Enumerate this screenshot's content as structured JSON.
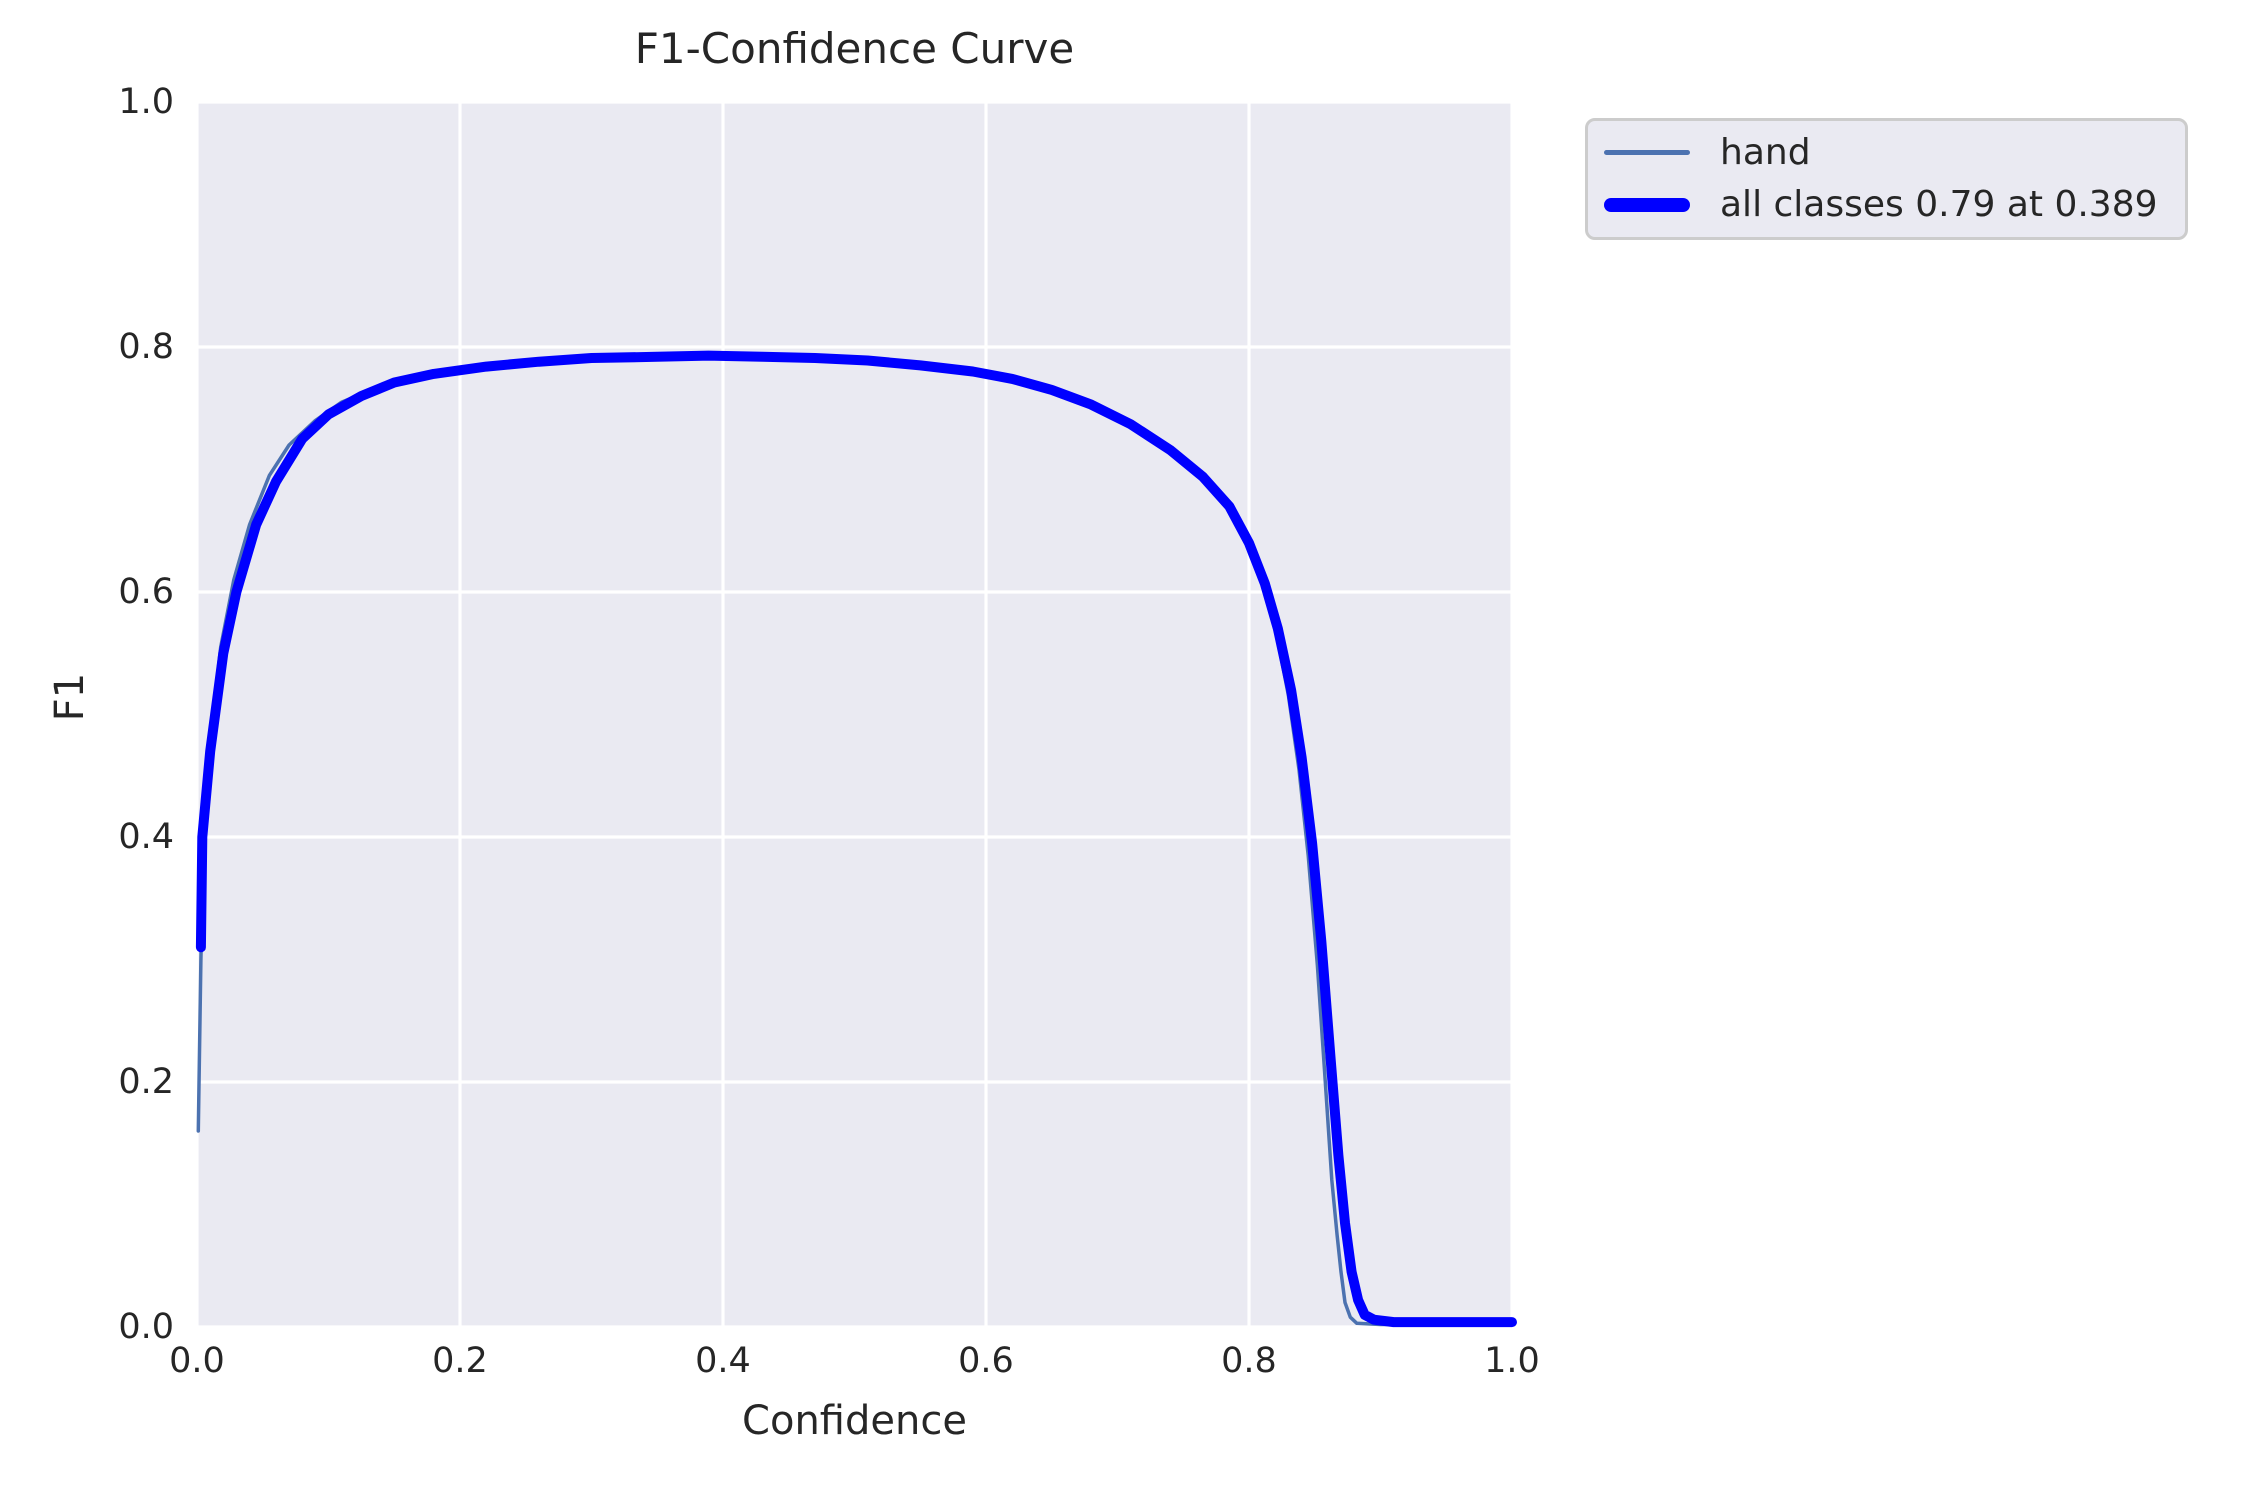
{
  "chart_data": {
    "type": "line",
    "title": "F1-Confidence Curve",
    "xlabel": "Confidence",
    "ylabel": "F1",
    "xlim": [
      0.0,
      1.0
    ],
    "ylim": [
      0.0,
      1.0
    ],
    "grid": true,
    "grid_color": "#FFFFFF",
    "axes_background": "#EAEAF2",
    "figure_background": "#FFFFFF",
    "text_color": "#262626",
    "legend_position": "outside-upper-right",
    "best": {
      "f1": 0.79,
      "confidence": 0.389
    },
    "xticks": {
      "values": [
        0.0,
        0.2,
        0.4,
        0.6,
        0.8,
        1.0
      ],
      "labels": [
        "0.0",
        "0.2",
        "0.4",
        "0.6",
        "0.8",
        "1.0"
      ]
    },
    "yticks": {
      "values": [
        0.0,
        0.2,
        0.4,
        0.6,
        0.8,
        1.0
      ],
      "labels": [
        "0.0",
        "0.2",
        "0.4",
        "0.6",
        "0.8",
        "1.0"
      ]
    },
    "series": [
      {
        "name": "hand",
        "color": "#4C72B0",
        "linewidth": 3.5,
        "points": [
          [
            0.001,
            0.16
          ],
          [
            0.003,
            0.3
          ],
          [
            0.005,
            0.4
          ],
          [
            0.01,
            0.48
          ],
          [
            0.018,
            0.555
          ],
          [
            0.028,
            0.61
          ],
          [
            0.04,
            0.655
          ],
          [
            0.055,
            0.695
          ],
          [
            0.07,
            0.72
          ],
          [
            0.09,
            0.74
          ],
          [
            0.11,
            0.755
          ],
          [
            0.135,
            0.766
          ],
          [
            0.16,
            0.775
          ],
          [
            0.19,
            0.781
          ],
          [
            0.23,
            0.786
          ],
          [
            0.27,
            0.789
          ],
          [
            0.31,
            0.791
          ],
          [
            0.35,
            0.792
          ],
          [
            0.389,
            0.793
          ],
          [
            0.43,
            0.792
          ],
          [
            0.47,
            0.791
          ],
          [
            0.51,
            0.789
          ],
          [
            0.55,
            0.785
          ],
          [
            0.59,
            0.78
          ],
          [
            0.62,
            0.774
          ],
          [
            0.65,
            0.765
          ],
          [
            0.68,
            0.753
          ],
          [
            0.71,
            0.737
          ],
          [
            0.74,
            0.716
          ],
          [
            0.765,
            0.694
          ],
          [
            0.785,
            0.67
          ],
          [
            0.8,
            0.638
          ],
          [
            0.812,
            0.602
          ],
          [
            0.822,
            0.56
          ],
          [
            0.83,
            0.515
          ],
          [
            0.838,
            0.455
          ],
          [
            0.845,
            0.385
          ],
          [
            0.852,
            0.295
          ],
          [
            0.858,
            0.2
          ],
          [
            0.863,
            0.12
          ],
          [
            0.867,
            0.075
          ],
          [
            0.87,
            0.045
          ],
          [
            0.873,
            0.02
          ],
          [
            0.877,
            0.008
          ],
          [
            0.882,
            0.003
          ],
          [
            0.9,
            0.002
          ],
          [
            0.95,
            0.002
          ],
          [
            1.0,
            0.002
          ]
        ]
      },
      {
        "name": "all classes 0.79 at 0.389",
        "color": "#0000FF",
        "linewidth": 10,
        "points": [
          [
            0.003,
            0.31
          ],
          [
            0.004,
            0.4
          ],
          [
            0.01,
            0.47
          ],
          [
            0.02,
            0.55
          ],
          [
            0.03,
            0.6
          ],
          [
            0.045,
            0.655
          ],
          [
            0.06,
            0.69
          ],
          [
            0.08,
            0.725
          ],
          [
            0.1,
            0.745
          ],
          [
            0.125,
            0.76
          ],
          [
            0.15,
            0.771
          ],
          [
            0.18,
            0.778
          ],
          [
            0.22,
            0.784
          ],
          [
            0.26,
            0.788
          ],
          [
            0.3,
            0.791
          ],
          [
            0.35,
            0.792
          ],
          [
            0.389,
            0.793
          ],
          [
            0.43,
            0.792
          ],
          [
            0.47,
            0.791
          ],
          [
            0.51,
            0.789
          ],
          [
            0.55,
            0.785
          ],
          [
            0.59,
            0.78
          ],
          [
            0.62,
            0.774
          ],
          [
            0.65,
            0.765
          ],
          [
            0.68,
            0.753
          ],
          [
            0.71,
            0.737
          ],
          [
            0.74,
            0.716
          ],
          [
            0.765,
            0.694
          ],
          [
            0.785,
            0.67
          ],
          [
            0.8,
            0.64
          ],
          [
            0.812,
            0.607
          ],
          [
            0.822,
            0.57
          ],
          [
            0.832,
            0.52
          ],
          [
            0.84,
            0.465
          ],
          [
            0.848,
            0.395
          ],
          [
            0.855,
            0.315
          ],
          [
            0.862,
            0.22
          ],
          [
            0.868,
            0.14
          ],
          [
            0.873,
            0.085
          ],
          [
            0.878,
            0.045
          ],
          [
            0.883,
            0.022
          ],
          [
            0.888,
            0.01
          ],
          [
            0.895,
            0.006
          ],
          [
            0.91,
            0.004
          ],
          [
            0.95,
            0.004
          ],
          [
            1.0,
            0.004
          ]
        ]
      }
    ]
  }
}
